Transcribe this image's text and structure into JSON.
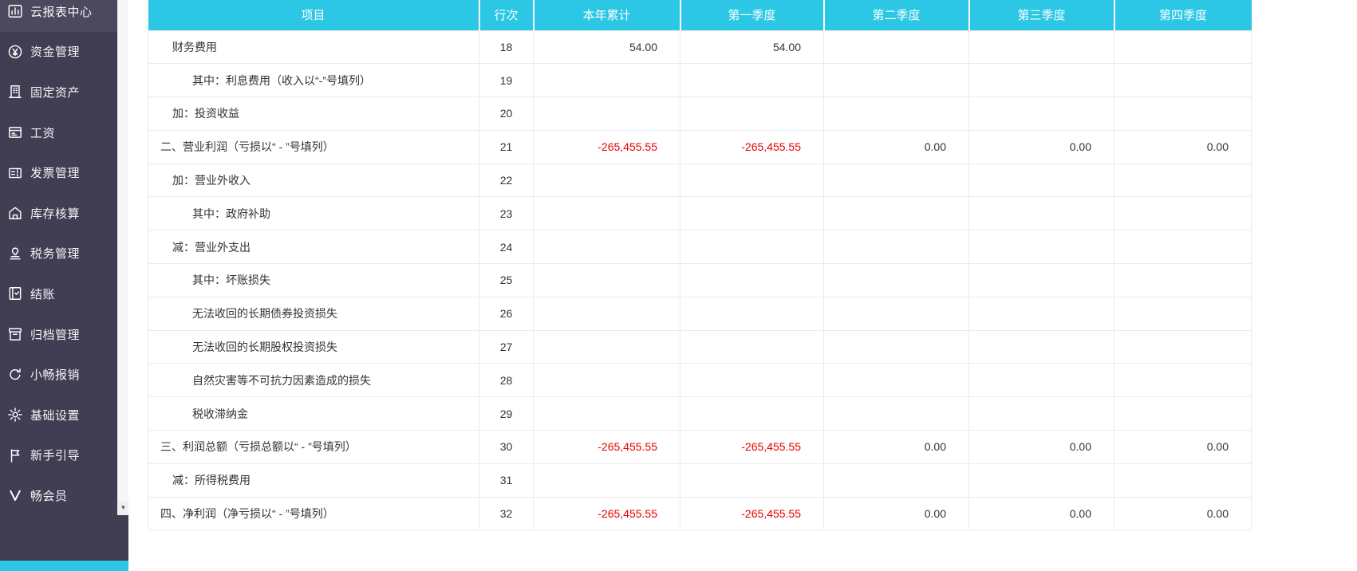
{
  "colors": {
    "accent": "#2BC7E4",
    "sidebar_bg": "#413D53",
    "negative_value": "#E60000"
  },
  "sidebar": {
    "items": [
      {
        "id": "cloud-reports",
        "label": "云报表中心",
        "icon": "chart-icon"
      },
      {
        "id": "funds",
        "label": "资金管理",
        "icon": "money-icon"
      },
      {
        "id": "fixed-assets",
        "label": "固定资产",
        "icon": "building-icon"
      },
      {
        "id": "salary",
        "label": "工资",
        "icon": "salary-icon"
      },
      {
        "id": "invoice",
        "label": "发票管理",
        "icon": "invoice-icon"
      },
      {
        "id": "inventory",
        "label": "库存核算",
        "icon": "inventory-icon"
      },
      {
        "id": "tax",
        "label": "税务管理",
        "icon": "tax-icon"
      },
      {
        "id": "closing",
        "label": "结账",
        "icon": "closing-icon"
      },
      {
        "id": "archive",
        "label": "归档管理",
        "icon": "archive-icon"
      },
      {
        "id": "reimburse",
        "label": "小畅报销",
        "icon": "reimburse-icon"
      },
      {
        "id": "settings",
        "label": "基础设置",
        "icon": "settings-icon"
      },
      {
        "id": "guide",
        "label": "新手引导",
        "icon": "guide-icon"
      },
      {
        "id": "member",
        "label": "畅会员",
        "icon": "member-icon"
      }
    ]
  },
  "scrollbar": {
    "down_glyph": "▼"
  },
  "table": {
    "columns": [
      "项目",
      "行次",
      "本年累计",
      "第一季度",
      "第二季度",
      "第三季度",
      "第四季度"
    ],
    "rows": [
      {
        "item": "财务费用",
        "indent": 1,
        "line": "18",
        "values": [
          "54.00",
          "54.00",
          "",
          "",
          ""
        ]
      },
      {
        "item": "其中：利息费用（收入以“-”号填列）",
        "indent": 2,
        "line": "19",
        "values": [
          "",
          "",
          "",
          "",
          ""
        ]
      },
      {
        "item": "加：投资收益",
        "indent": 1,
        "line": "20",
        "values": [
          "",
          "",
          "",
          "",
          ""
        ]
      },
      {
        "item": "二、营业利润（亏损以“ - ”号填列）",
        "indent": 0,
        "line": "21",
        "values": [
          "-265,455.55",
          "-265,455.55",
          "0.00",
          "0.00",
          "0.00"
        ]
      },
      {
        "item": "加：营业外收入",
        "indent": 1,
        "line": "22",
        "values": [
          "",
          "",
          "",
          "",
          ""
        ]
      },
      {
        "item": "其中：政府补助",
        "indent": 2,
        "line": "23",
        "values": [
          "",
          "",
          "",
          "",
          ""
        ]
      },
      {
        "item": "减：营业外支出",
        "indent": 1,
        "line": "24",
        "values": [
          "",
          "",
          "",
          "",
          ""
        ]
      },
      {
        "item": "其中：坏账损失",
        "indent": 2,
        "line": "25",
        "values": [
          "",
          "",
          "",
          "",
          ""
        ]
      },
      {
        "item": "无法收回的长期债券投资损失",
        "indent": 2,
        "line": "26",
        "values": [
          "",
          "",
          "",
          "",
          ""
        ]
      },
      {
        "item": "无法收回的长期股权投资损失",
        "indent": 2,
        "line": "27",
        "values": [
          "",
          "",
          "",
          "",
          ""
        ]
      },
      {
        "item": "自然灾害等不可抗力因素造成的损失",
        "indent": 2,
        "line": "28",
        "values": [
          "",
          "",
          "",
          "",
          ""
        ]
      },
      {
        "item": "税收滞纳金",
        "indent": 2,
        "line": "29",
        "values": [
          "",
          "",
          "",
          "",
          ""
        ]
      },
      {
        "item": "三、利润总额（亏损总额以“ - ”号填列）",
        "indent": 0,
        "line": "30",
        "values": [
          "-265,455.55",
          "-265,455.55",
          "0.00",
          "0.00",
          "0.00"
        ]
      },
      {
        "item": "减：所得税费用",
        "indent": 1,
        "line": "31",
        "values": [
          "",
          "",
          "",
          "",
          ""
        ]
      },
      {
        "item": "四、净利润（净亏损以“ - ”号填列）",
        "indent": 0,
        "line": "32",
        "values": [
          "-265,455.55",
          "-265,455.55",
          "0.00",
          "0.00",
          "0.00"
        ]
      }
    ]
  }
}
